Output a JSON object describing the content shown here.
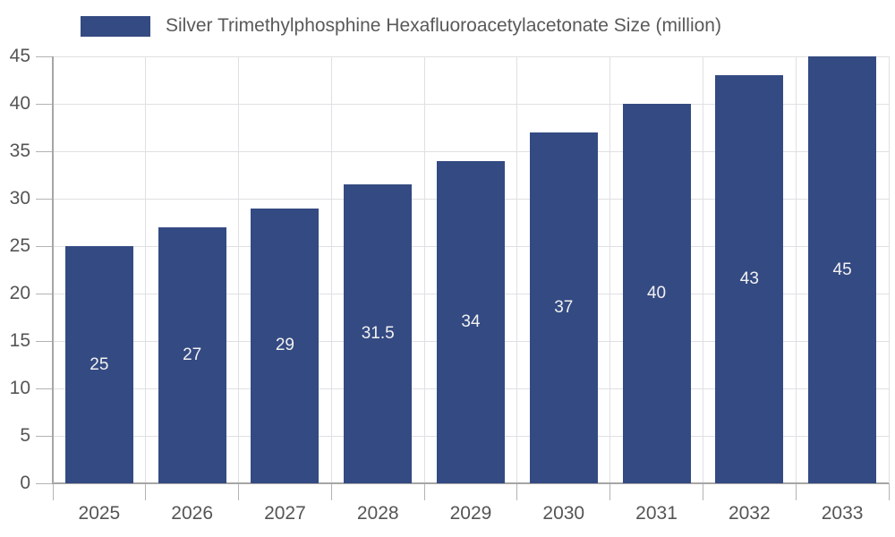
{
  "legend": {
    "label": "Silver Trimethylphosphine Hexafluoroacetylacetonate Size (million)"
  },
  "colors": {
    "bar": "#344A82",
    "bar_label": "#f2f2f2",
    "axis_text": "#555555",
    "legend_text": "#595959",
    "grid": "#e0e0e4",
    "axis_line": "#a6a6a6",
    "tick": "#b3b3b3",
    "background": "#ffffff"
  },
  "chart_data": {
    "type": "bar",
    "title": "",
    "xlabel": "",
    "ylabel": "",
    "categories": [
      "2025",
      "2026",
      "2027",
      "2028",
      "2029",
      "2030",
      "2031",
      "2032",
      "2033"
    ],
    "series": [
      {
        "name": "Silver Trimethylphosphine Hexafluoroacetylacetonate Size (million)",
        "values": [
          25,
          27,
          29,
          31.5,
          34,
          37,
          40,
          43,
          45
        ]
      }
    ],
    "bar_value_labels": [
      "25",
      "27",
      "29",
      "31.5",
      "34",
      "37",
      "40",
      "43",
      "45"
    ],
    "ylim": [
      0,
      45
    ],
    "yticks": [
      0,
      5,
      10,
      15,
      20,
      25,
      30,
      35,
      40,
      45
    ],
    "grid": true,
    "legend_position": "top-left",
    "value_labels_inside_bars": true
  }
}
